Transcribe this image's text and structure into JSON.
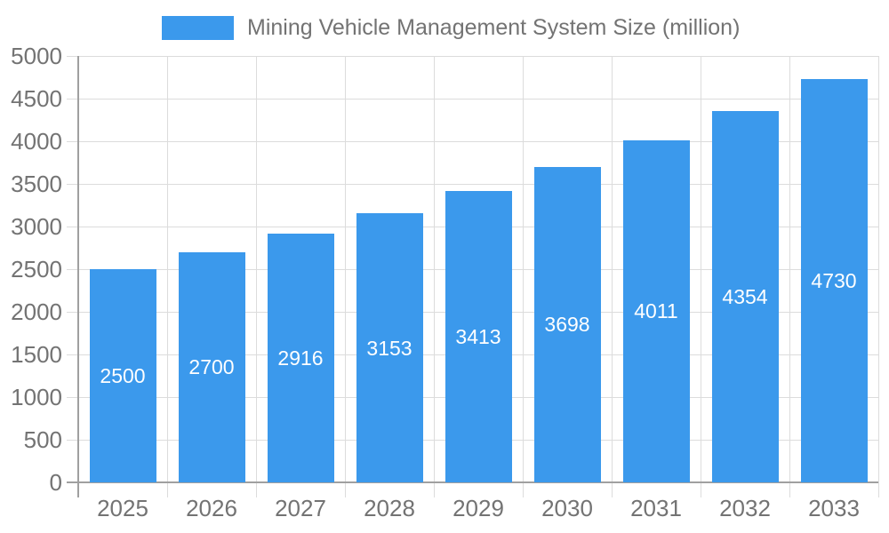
{
  "legend": {
    "label": "Mining Vehicle Management System Size (million)"
  },
  "chart_data": {
    "type": "bar",
    "title": "",
    "xlabel": "",
    "ylabel": "",
    "legend_position": "top",
    "categories": [
      "2025",
      "2026",
      "2027",
      "2028",
      "2029",
      "2030",
      "2031",
      "2032",
      "2033"
    ],
    "series": [
      {
        "name": "Mining Vehicle Management System Size (million)",
        "values": [
          2500,
          2700,
          2916,
          3153,
          3413,
          3698,
          4011,
          4354,
          4730
        ]
      }
    ],
    "ylim": [
      0,
      5000
    ],
    "ytick_step": 500,
    "yticks": [
      0,
      500,
      1000,
      1500,
      2000,
      2500,
      3000,
      3500,
      4000,
      4500,
      5000
    ],
    "grid": true,
    "value_labels": "inside-center"
  },
  "colors": {
    "bar": "#3B99EC",
    "grid": "#DCDCDC",
    "axis": "#A0A0A0",
    "text": "#737373",
    "value_text": "#FFFFFF",
    "background": "#FFFFFF"
  }
}
